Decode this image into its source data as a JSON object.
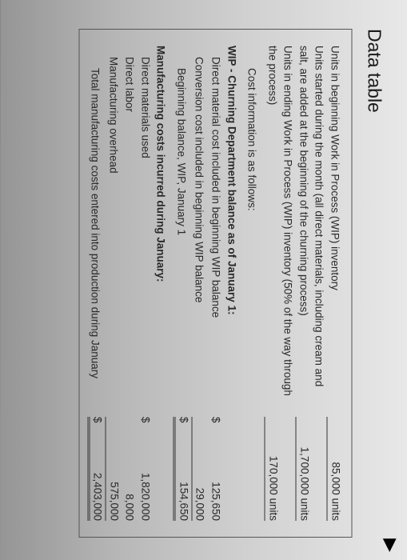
{
  "title": "Data table",
  "units": {
    "rows": [
      {
        "label": "Units in beginning Work in Process (WIP) inventory",
        "value": "85,000 units"
      },
      {
        "label": "Units started during the month (all direct materials, including cream and salt, are added at the beginning of the churning process)",
        "value": "1,700,000 units"
      },
      {
        "label": "Units in ending Work in Process (WIP) inventory (50% of the way through the process)",
        "value": "170,000 units"
      }
    ]
  },
  "cost_header": "Cost information is as follows:",
  "wip_header": "WIP - Churning Department balance as of January 1:",
  "wip": {
    "rows": [
      {
        "label": "Direct material cost included in beginning WIP balance",
        "cur": "$",
        "value": "125,650"
      },
      {
        "label": "Conversion cost included in beginning WIP balance",
        "cur": "",
        "value": "29,000"
      }
    ],
    "total": {
      "label": "Beginning balance, WIP, January 1",
      "cur": "$",
      "value": "154,650"
    }
  },
  "mfg_header": "Manufacturing costs incurred during January:",
  "mfg": {
    "rows": [
      {
        "label": "Direct materials used",
        "cur": "$",
        "value": "1,820,000"
      },
      {
        "label": "Direct labor",
        "cur": "",
        "value": "8,000"
      },
      {
        "label": "Manufacturing overhead",
        "cur": "",
        "value": "575,000"
      }
    ],
    "total": {
      "label": "Total manufacturing costs entered into production during January",
      "cur": "$",
      "value": "2,403,000"
    }
  }
}
